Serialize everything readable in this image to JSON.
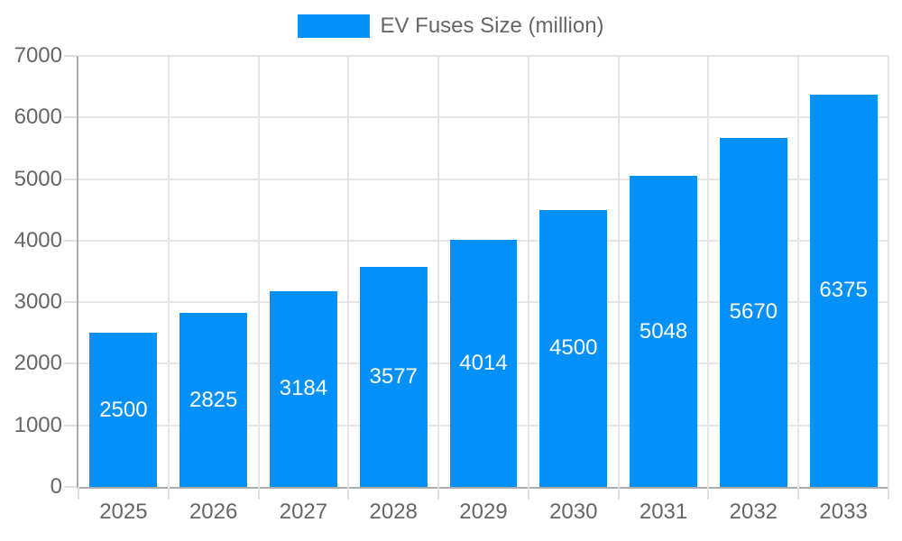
{
  "legend": {
    "label": "EV Fuses Size (million)",
    "swatch_color": "#0490F9"
  },
  "chart_data": {
    "type": "bar",
    "title": "",
    "xlabel": "",
    "ylabel": "",
    "categories": [
      "2025",
      "2026",
      "2027",
      "2028",
      "2029",
      "2030",
      "2031",
      "2032",
      "2033"
    ],
    "series": [
      {
        "name": "EV Fuses Size (million)",
        "values": [
          2500,
          2825,
          3184,
          3577,
          4014,
          4500,
          5048,
          5670,
          6375
        ]
      }
    ],
    "value_labels_shown": true,
    "ylim": [
      0,
      7000
    ],
    "y_ticks": [
      0,
      1000,
      2000,
      3000,
      4000,
      5000,
      6000,
      7000
    ],
    "grid": true,
    "legend_position": "top",
    "colors": {
      "bar": "#0490F9",
      "value_label": "#FFFFFF",
      "axis_text": "#666666",
      "grid_line": "#E5E5E5",
      "axis_line": "#ABABAB",
      "background": "#FFFFFF"
    },
    "bar_width_fraction": 0.75
  }
}
